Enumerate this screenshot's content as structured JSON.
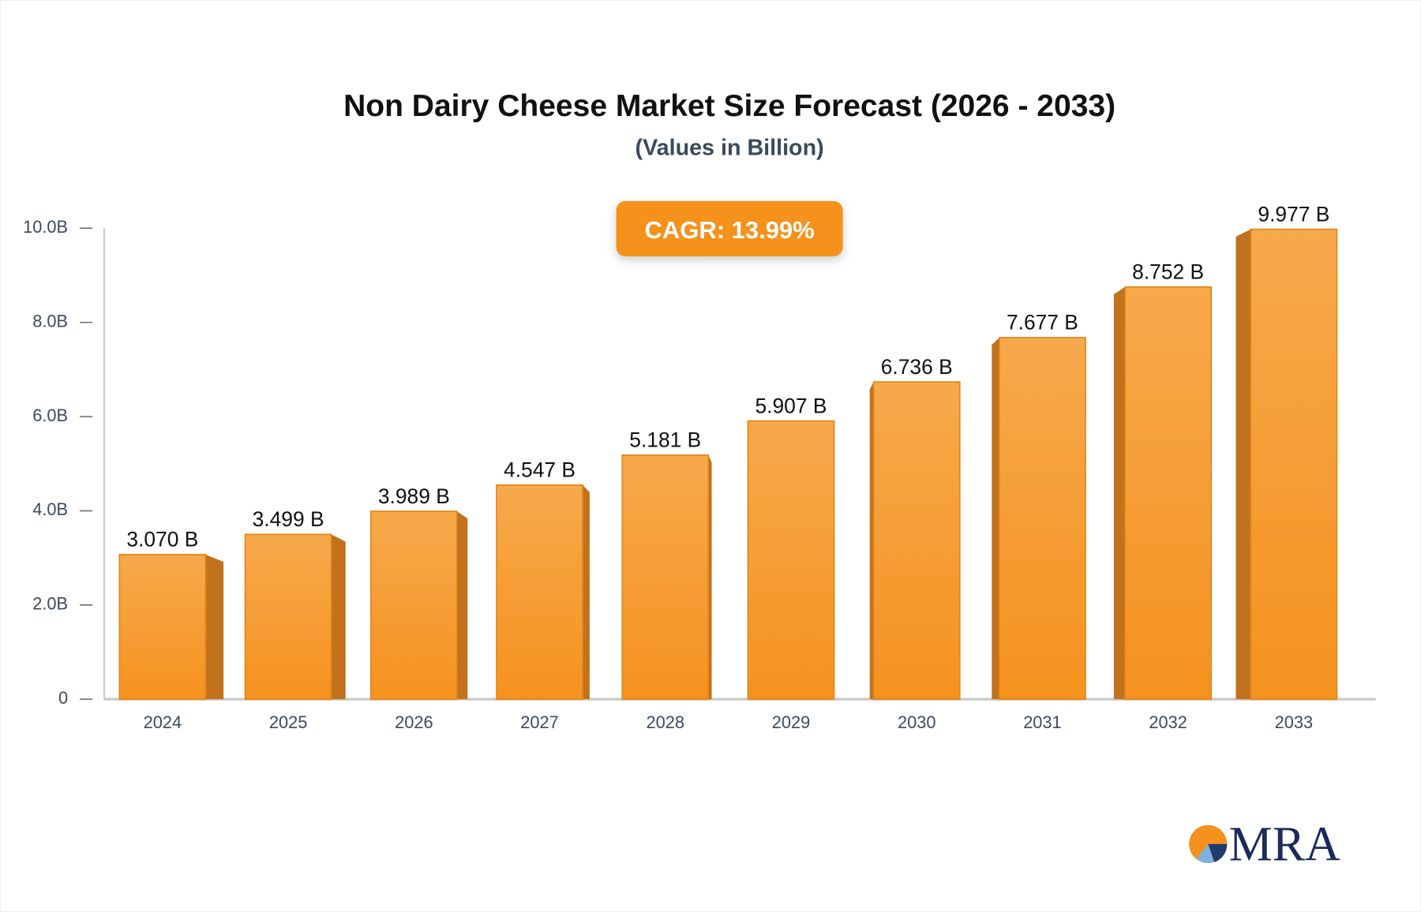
{
  "chart_data": {
    "type": "bar3d",
    "title": "Non Dairy Cheese Market Size Forecast (2026 - 2033)",
    "subtitle": "(Values in Billion)",
    "annotation": "CAGR: 13.99%",
    "categories": [
      "2024",
      "2025",
      "2026",
      "2027",
      "2028",
      "2029",
      "2030",
      "2031",
      "2032",
      "2033"
    ],
    "values": [
      3.07,
      3.499,
      3.989,
      4.547,
      5.181,
      5.907,
      6.736,
      7.677,
      8.752,
      9.977
    ],
    "value_labels": [
      "3.070 B",
      "3.499 B",
      "3.989 B",
      "4.547 B",
      "5.181 B",
      "5.907 B",
      "6.736 B",
      "7.677 B",
      "8.752 B",
      "9.977 B"
    ],
    "color": "#f5961f",
    "ylim": [
      0,
      10
    ],
    "yticks": [
      0,
      {
        "value": 2,
        "label": "2.0B"
      },
      {
        "value": 4,
        "label": "4.0B"
      },
      {
        "value": 6,
        "label": "6.0B"
      },
      {
        "value": 8,
        "label": "8.0B"
      },
      {
        "value": 10,
        "label": "10.0B"
      }
    ]
  },
  "logo": "MRA"
}
